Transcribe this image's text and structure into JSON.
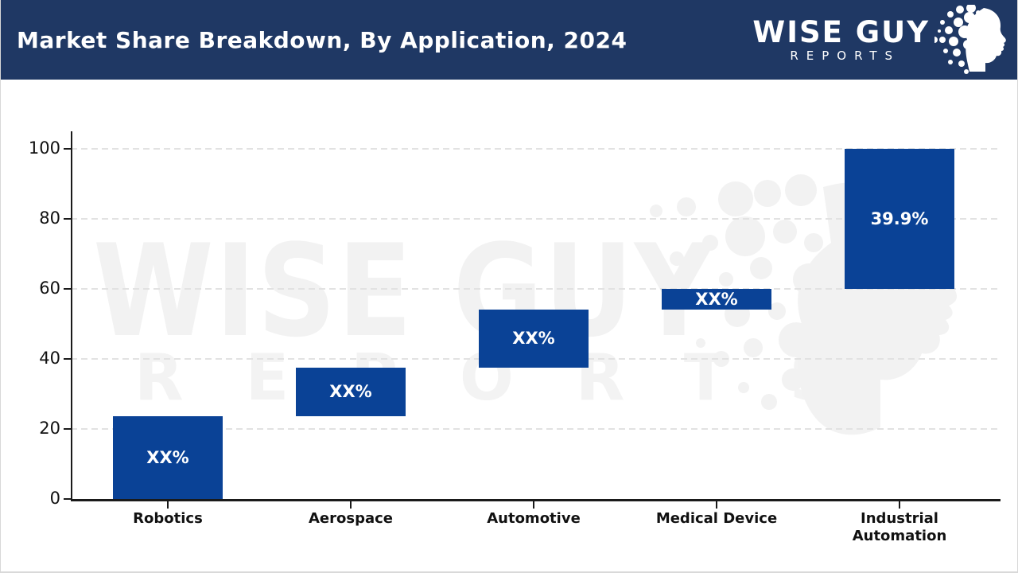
{
  "header": {
    "title": "Market Share Breakdown, By Application, 2024",
    "brand": {
      "line1": "WISE GUY",
      "line2": "REPORTS"
    },
    "bg_color": "#1f3864"
  },
  "watermark": {
    "line1": "WISE GUY",
    "line2": "REPORTS"
  },
  "chart_data": {
    "type": "bar",
    "subtype": "waterfall",
    "title": "Market Share Breakdown, By Application, 2024",
    "xlabel": "",
    "ylabel": "",
    "categories": [
      "Robotics",
      "Aerospace",
      "Automotive",
      "Medical Device",
      "Industrial Automation"
    ],
    "segments": [
      {
        "category": "Robotics",
        "start": 0,
        "end": 23.6,
        "value": 23.6,
        "label": "XX%"
      },
      {
        "category": "Aerospace",
        "start": 23.6,
        "end": 37.6,
        "value": 14.0,
        "label": "XX%"
      },
      {
        "category": "Automotive",
        "start": 37.6,
        "end": 54.0,
        "value": 16.4,
        "label": "XX%"
      },
      {
        "category": "Medical Device",
        "start": 54.0,
        "end": 60.1,
        "value": 6.1,
        "label": "XX%"
      },
      {
        "category": "Industrial Automation",
        "start": 60.1,
        "end": 100,
        "value": 39.9,
        "label": "39.9%"
      }
    ],
    "yticks": [
      0,
      20,
      40,
      60,
      80,
      100
    ],
    "ylim": [
      0,
      105
    ],
    "grid": "horizontal-dashed",
    "legend": "none",
    "bar_color": "#0a4296",
    "bar_label_color": "#ffffff",
    "axis_color": "#1a1a1a",
    "gridline_color": "#e2e2e2"
  }
}
